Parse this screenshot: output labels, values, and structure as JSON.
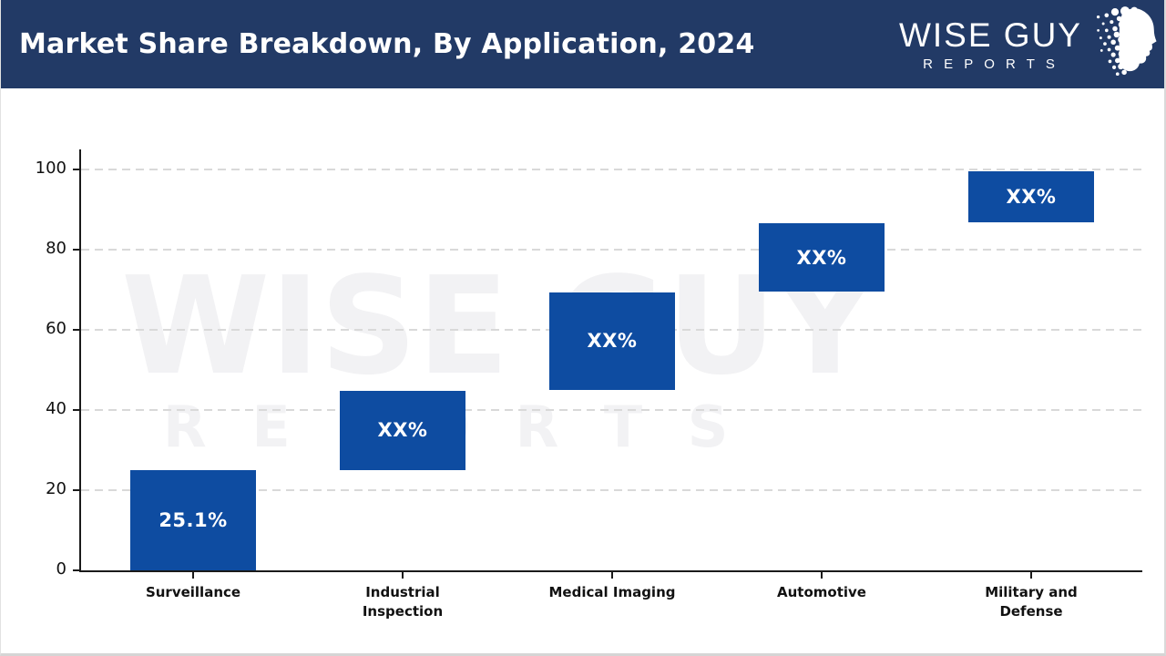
{
  "header": {
    "title": "Market Share Breakdown, By Application, 2024",
    "bg_color": "#223A66",
    "logo": {
      "word": "WISE GUY",
      "sub": "R E P O R T S"
    }
  },
  "watermark": {
    "word": "WISE GUY",
    "sub": "R E P O R T S"
  },
  "chart_data": {
    "type": "bar",
    "subtype": "waterfall-range",
    "title": "Market Share Breakdown, By Application, 2024",
    "categories": [
      "Surveillance",
      "Industrial\nInspection",
      "Medical Imaging",
      "Automotive",
      "Military and\nDefense"
    ],
    "series": [
      {
        "name": "Market Share",
        "segments": [
          {
            "category": "Surveillance",
            "base": 0,
            "top": 25.1,
            "label": "25.1%"
          },
          {
            "category": "Industrial Inspection",
            "base": 25.1,
            "top": 44.8,
            "label": "XX%"
          },
          {
            "category": "Medical Imaging",
            "base": 45.1,
            "top": 69.3,
            "label": "XX%"
          },
          {
            "category": "Automotive",
            "base": 69.5,
            "top": 86.6,
            "label": "XX%"
          },
          {
            "category": "Military and Defense",
            "base": 86.8,
            "top": 99.5,
            "label": "XX%"
          }
        ]
      }
    ],
    "xlabel": "",
    "ylabel": "",
    "ylim": [
      0,
      100
    ],
    "yticks": [
      0,
      20,
      40,
      60,
      80,
      100
    ],
    "grid": "dashed-horizontal",
    "legend": "none",
    "bar_color": "#0E4CA1",
    "bar_label_color": "#FFFFFF",
    "axis_color": "#1a1a1a",
    "grid_color": "#d9d9d9"
  }
}
